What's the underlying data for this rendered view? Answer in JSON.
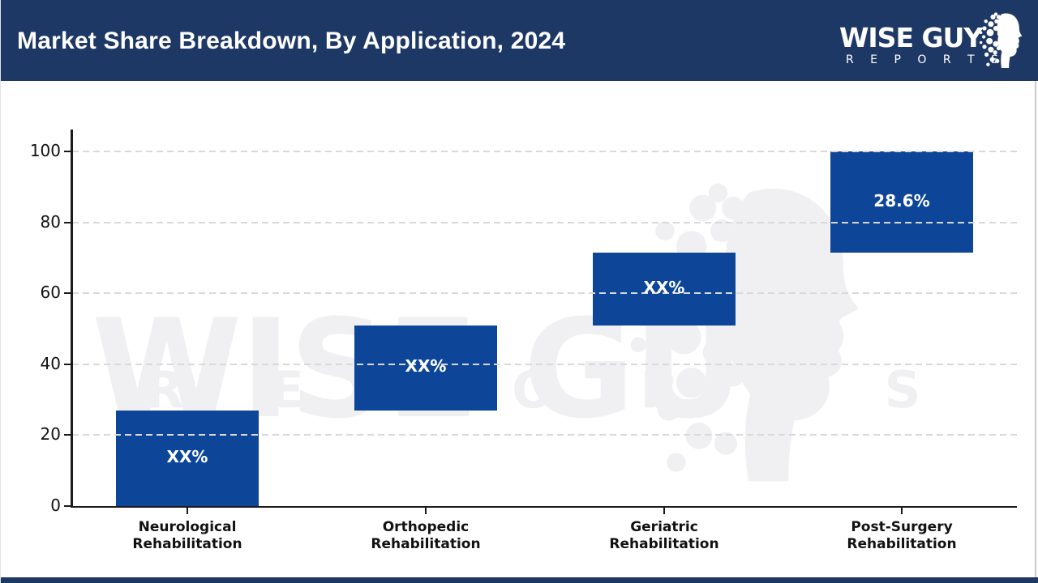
{
  "header": {
    "title": "Market Share Breakdown, By Application, 2024",
    "bg_color": "#1e3866",
    "logo": {
      "name_top": "WISE GUY",
      "name_bottom": "R E P O R T S"
    }
  },
  "watermark": {
    "text_top": "WISE GUY",
    "text_bottom": "R E P O R T S"
  },
  "footer": {
    "bg_color": "#1e3866"
  },
  "chart_data": {
    "type": "bar",
    "subtype": "floating-waterfall",
    "title": "Market Share Breakdown, By Application, 2024",
    "categories": [
      "Neurological Rehabilitation",
      "Orthopedic Rehabilitation",
      "Geriatric Rehabilitation",
      "Post-Surgery Rehabilitation"
    ],
    "category_lines": [
      [
        "Neurological",
        "Rehabilitation"
      ],
      [
        "Orthopedic",
        "Rehabilitation"
      ],
      [
        "Geriatric",
        "Rehabilitation"
      ],
      [
        "Post-Surgery",
        "Rehabilitation"
      ]
    ],
    "segments": [
      {
        "category": "Neurological Rehabilitation",
        "start": 0,
        "end": 27,
        "label": "XX%"
      },
      {
        "category": "Orthopedic Rehabilitation",
        "start": 27,
        "end": 51,
        "label": "XX%"
      },
      {
        "category": "Geriatric Rehabilitation",
        "start": 51,
        "end": 71.4,
        "label": "XX%"
      },
      {
        "category": "Post-Surgery Rehabilitation",
        "start": 71.4,
        "end": 100,
        "label": "28.6%"
      }
    ],
    "yticks": [
      0,
      20,
      40,
      60,
      80,
      100
    ],
    "ylim": [
      0,
      106
    ],
    "xlabel": "",
    "ylabel": "",
    "legend": "none",
    "grid": {
      "axis": "y",
      "style": "dashed",
      "color": "#d9d9d9",
      "drawn_over_bars": true
    },
    "bar_color": "#0d4699",
    "label_color": "#ffffff",
    "axis_color": "#1a1a1a"
  }
}
